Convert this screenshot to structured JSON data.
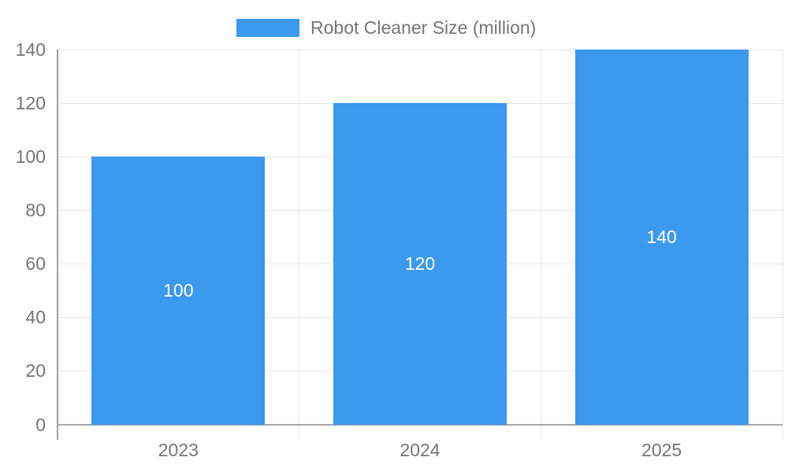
{
  "chart_data": {
    "type": "bar",
    "categories": [
      "2023",
      "2024",
      "2025"
    ],
    "series": [
      {
        "name": "Robot Cleaner Size (million)",
        "values": [
          100,
          120,
          140
        ]
      }
    ],
    "bar_value_labels": [
      "100",
      "120",
      "140"
    ],
    "legend": {
      "position": "top",
      "label": "Robot Cleaner Size (million)"
    },
    "xlabel": "",
    "ylabel": "",
    "ylim": [
      0,
      140
    ],
    "yticks": [
      0,
      20,
      40,
      60,
      80,
      100,
      120,
      140
    ],
    "grid": true,
    "colors": {
      "bar": "#3b99ee",
      "bar_label_text": "#ffffff",
      "axis_text": "#757575",
      "gridline": "#e6e6e6",
      "y_axis_line": "#9e9e9e",
      "x_axis_line": "#a6a6a6"
    }
  }
}
